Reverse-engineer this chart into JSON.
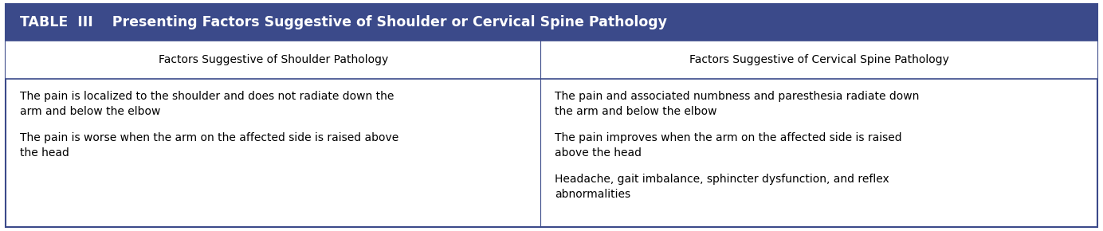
{
  "title": "TABLE  III    Presenting Factors Suggestive of Shoulder or Cervical Spine Pathology",
  "header_bg": "#3B4A8A",
  "header_text_color": "#FFFFFF",
  "border_color": "#3B4A8A",
  "col1_header": "Factors Suggestive of Shoulder Pathology",
  "col2_header": "Factors Suggestive of Cervical Spine Pathology",
  "col1_items": [
    "The pain is localized to the shoulder and does not radiate down the\narm and below the elbow",
    "The pain is worse when the arm on the affected side is raised above\nthe head"
  ],
  "col2_items": [
    "The pain and associated numbness and paresthesia radiate down\nthe arm and below the elbow",
    "The pain improves when the arm on the affected side is raised\nabove the head",
    "Headache, gait imbalance, sphincter dysfunction, and reflex\nabnormalities"
  ],
  "title_fontsize": 12.5,
  "header_fontsize": 10.0,
  "body_fontsize": 10.0,
  "fig_width": 13.84,
  "fig_height": 2.9,
  "dpi": 100
}
